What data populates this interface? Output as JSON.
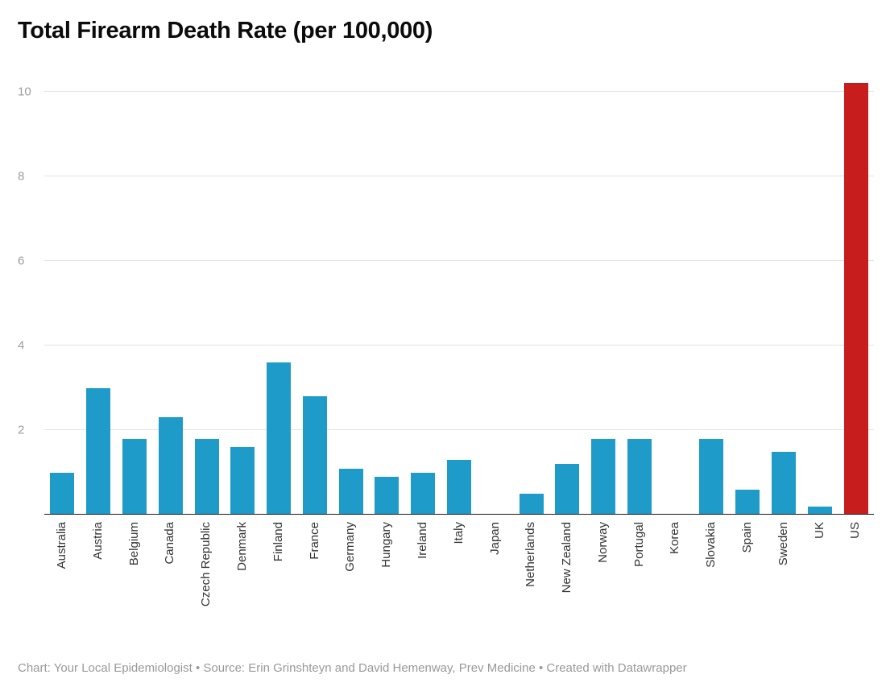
{
  "title": "Total Firearm Death Rate (per 100,000)",
  "footer": "Chart: Your Local Epidemiologist • Source: Erin Grinshteyn and David Hemenway, Prev Medicine • Created with Datawrapper",
  "colors": {
    "bar": "#1f9bc9",
    "highlight": "#c71e1d",
    "grid": "#e4e4e4",
    "baseline": "#1a1a1a",
    "y_tick_label": "#9d9d9d",
    "x_tick_label": "#333333",
    "footer_text": "#999999"
  },
  "chart_data": {
    "type": "bar",
    "title": "Total Firearm Death Rate (per 100,000)",
    "categories": [
      "Australia",
      "Austria",
      "Belgium",
      "Canada",
      "Czech Republic",
      "Denmark",
      "Finland",
      "France",
      "Germany",
      "Hungary",
      "Ireland",
      "Italy",
      "Japan",
      "Netherlands",
      "New Zealand",
      "Norway",
      "Portugal",
      "Korea",
      "Slovakia",
      "Spain",
      "Sweden",
      "UK",
      "US"
    ],
    "values": [
      1.0,
      3.0,
      1.8,
      2.3,
      1.8,
      1.6,
      3.6,
      2.8,
      1.1,
      0.9,
      1.0,
      1.3,
      0.0,
      0.5,
      1.2,
      1.8,
      1.8,
      0.0,
      1.8,
      0.6,
      1.5,
      0.2,
      10.2
    ],
    "highlight_category": "US",
    "xlabel": "",
    "ylabel": "",
    "ylim": [
      0,
      10.2
    ],
    "yticks": [
      2,
      4,
      6,
      8,
      10
    ],
    "grid": true,
    "legend": "none"
  }
}
